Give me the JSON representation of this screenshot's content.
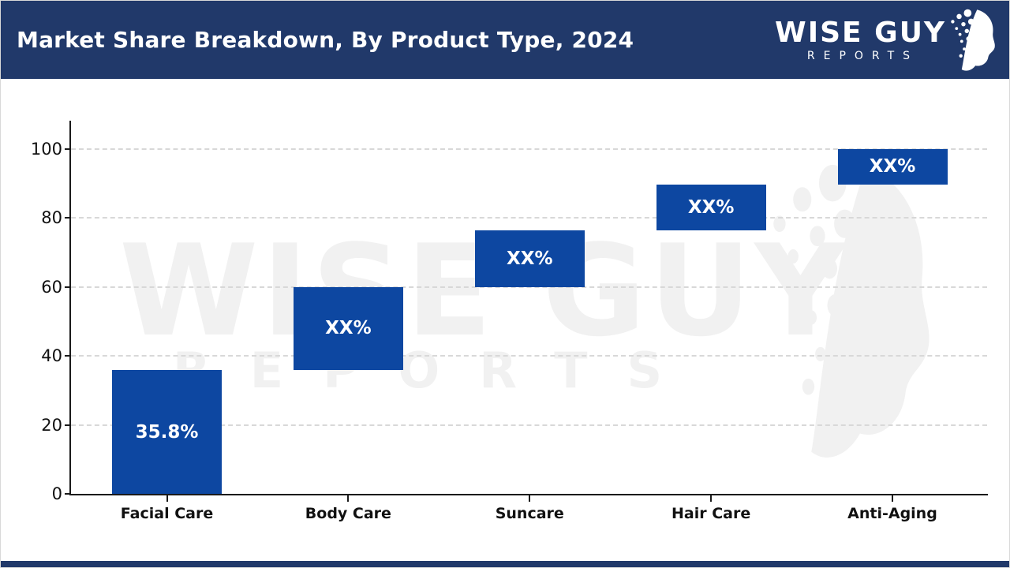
{
  "header": {
    "title": "Market Share Breakdown, By Product Type, 2024",
    "logo": {
      "brand": "WISE GUY",
      "sub": "REPORTS"
    }
  },
  "watermark": {
    "brand": "WISE GUY",
    "sub": "REPORTS"
  },
  "colors": {
    "header_bg": "#21396a",
    "footer_bg": "#21396a",
    "bar": "#0d47a1",
    "bar_label": "#ffffff",
    "grid": "#d8d8d8",
    "axis": "#1a1a1a",
    "watermark": "#f1f1f1"
  },
  "chart_data": {
    "type": "bar",
    "variant": "waterfall",
    "title": "Market Share Breakdown, By Product Type, 2024",
    "categories": [
      "Facial Care",
      "Body Care",
      "Suncare",
      "Hair Care",
      "Anti-Aging"
    ],
    "bars": [
      {
        "category": "Facial Care",
        "start": 0,
        "end": 35.8,
        "label": "35.8%"
      },
      {
        "category": "Body Care",
        "start": 35.8,
        "end": 60,
        "label": "XX%"
      },
      {
        "category": "Suncare",
        "start": 60,
        "end": 76.3,
        "label": "XX%"
      },
      {
        "category": "Hair Care",
        "start": 76.3,
        "end": 89.7,
        "label": "XX%"
      },
      {
        "category": "Anti-Aging",
        "start": 89.7,
        "end": 100,
        "label": "XX%"
      }
    ],
    "xlabel": "",
    "ylabel": "",
    "ylim": [
      0,
      100
    ],
    "yticks": [
      0,
      20,
      40,
      60,
      80,
      100
    ],
    "grid": "horizontal-dashed",
    "legend": "none",
    "bar_color": "#0d47a1",
    "value_label_color": "#ffffff"
  }
}
